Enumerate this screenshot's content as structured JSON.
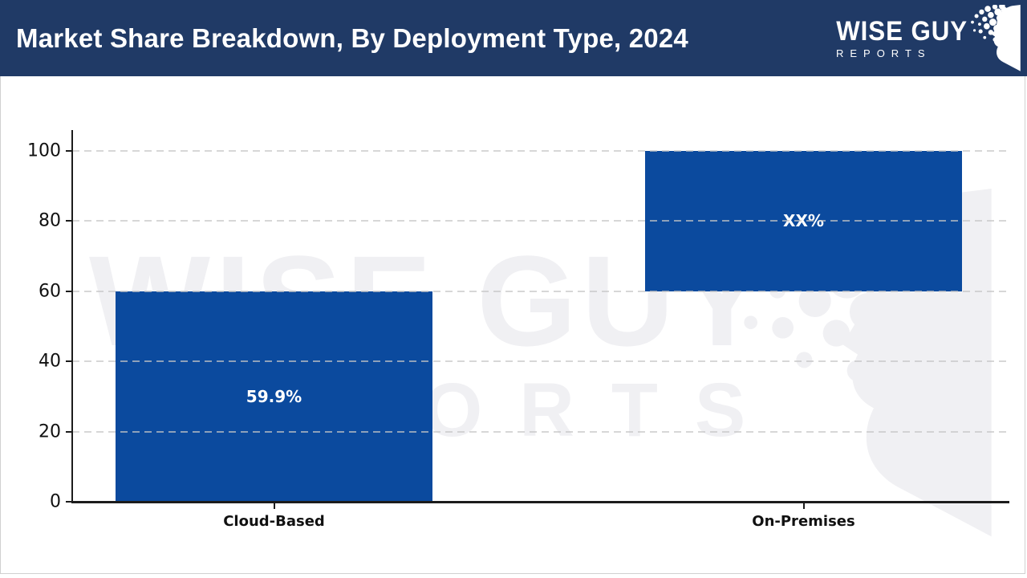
{
  "header": {
    "title": "Market Share Breakdown, By Deployment Type, 2024",
    "bg_color": "#203a66",
    "brand": {
      "line1": "WISE GUY",
      "line2": "REPORTS",
      "face_icon": "wiseguy-face-icon"
    }
  },
  "watermark": {
    "line1": "WISE GUY",
    "line2": "REPORTS"
  },
  "chart_data": {
    "type": "bar",
    "title": "Market Share Breakdown, By Deployment Type, 2024",
    "categories": [
      "Cloud-Based",
      "On-Premises"
    ],
    "bars": [
      {
        "category": "Cloud-Based",
        "base": 0,
        "top": 59.9,
        "label": "59.9%"
      },
      {
        "category": "On-Premises",
        "base": 60,
        "top": 100,
        "label": "XX%"
      }
    ],
    "ylim": [
      0,
      100
    ],
    "yticks": [
      0,
      20,
      40,
      60,
      80,
      100
    ],
    "xlabel": "",
    "ylabel": "",
    "grid": "horizontal-dashed",
    "legend": "none",
    "bar_color": "#0b4a9e",
    "bar_label_color": "#ffffff"
  }
}
